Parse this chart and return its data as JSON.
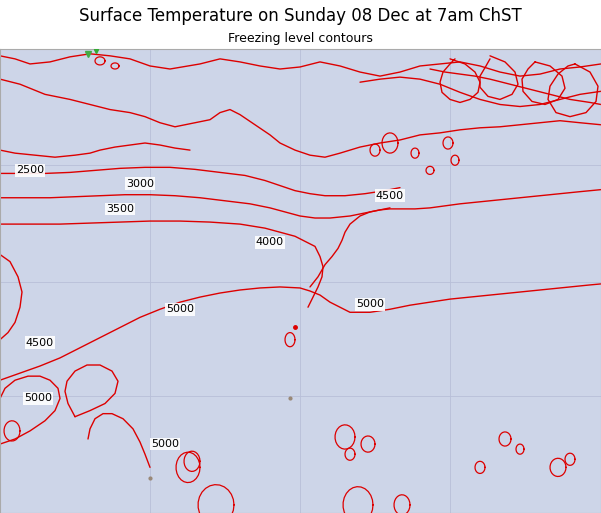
{
  "title": "Surface Temperature on Sunday 08 Dec at 7am ChST",
  "subtitle": "Freezing level contours",
  "title_fontsize": 12,
  "subtitle_fontsize": 9,
  "map_bg_color": "#cdd5e8",
  "contour_color": "#dd0000",
  "label_fontsize": 7,
  "figsize": [
    6.01,
    5.13
  ],
  "dpi": 100,
  "grid_color": "#b8bfd8",
  "title_area_color": "#ffffff",
  "border_color": "#aaaaaa"
}
